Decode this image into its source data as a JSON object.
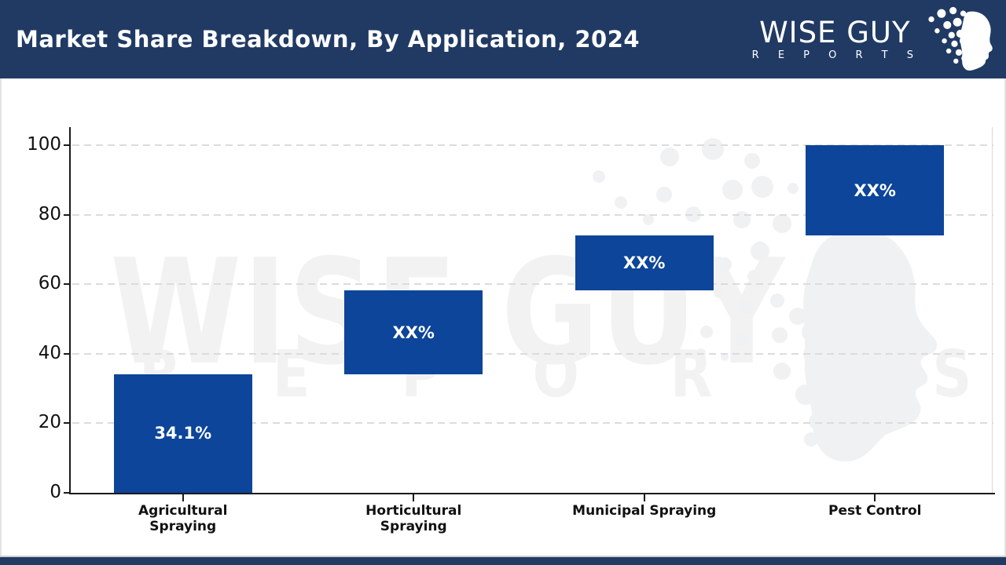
{
  "header": {
    "title": "Market Share Breakdown, By Application, 2024",
    "bg_color": "#203a64",
    "logo": {
      "line1": "WISE GUY",
      "line2": "R E P O R T S"
    }
  },
  "watermark": {
    "line1": "WISE GUY",
    "line2": "R E P O R T S"
  },
  "chart_data": {
    "type": "bar",
    "subtype": "waterfall",
    "title": "Market Share Breakdown, By Application, 2024",
    "categories": [
      "Agricultural Spraying",
      "Horticultural Spraying",
      "Municipal Spraying",
      "Pest Control"
    ],
    "series": [
      {
        "name": "Market Share (%)",
        "segments": [
          {
            "category": "Agricultural Spraying",
            "start": 0,
            "end": 34.1,
            "label": "34.1%"
          },
          {
            "category": "Horticultural Spraying",
            "start": 34.1,
            "end": 58.2,
            "label": "XX%"
          },
          {
            "category": "Municipal Spraying",
            "start": 58.2,
            "end": 74.0,
            "label": "XX%"
          },
          {
            "category": "Pest Control",
            "start": 74.0,
            "end": 100.0,
            "label": "XX%"
          }
        ]
      }
    ],
    "xlabel": "",
    "ylabel": "",
    "ylim": [
      0,
      100
    ],
    "yticks": [
      0,
      20,
      40,
      60,
      80,
      100
    ],
    "grid": "horizontal dashed",
    "legend": "none",
    "bar_color": "#0c4599",
    "bar_label_color": "#ffffff",
    "x_tick_label_lines": [
      [
        "Agricultural",
        "Spraying"
      ],
      [
        "Horticultural",
        "Spraying"
      ],
      [
        "Municipal Spraying"
      ],
      [
        "Pest Control"
      ]
    ]
  }
}
